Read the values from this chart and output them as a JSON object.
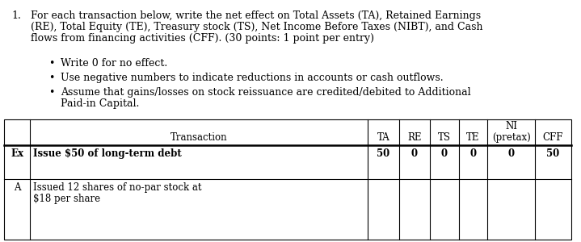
{
  "title_number": "1.",
  "title_line1": "For each transaction below, write the net effect on Total Assets (TA), Retained Earnings",
  "title_line2": "(RE), Total Equity (TE), Treasury stock (TS), Net Income Before Taxes (NIBT), and Cash",
  "title_line3": "flows from financing activities (CFF). (30 points: 1 point per entry)",
  "bullet1": "Write 0 for no effect.",
  "bullet2": "Use negative numbers to indicate reductions in accounts or cash outflows.",
  "bullet3a": "Assume that gains/losses on stock reissuance are credited/debited to Additional",
  "bullet3b": "Paid-in Capital.",
  "col_labels": [
    "",
    "Transaction",
    "TA",
    "RE",
    "TS",
    "TE",
    "NI\n(pretax)",
    "CFF"
  ],
  "header_ni_line1": "NI",
  "header_ni_line2": "(pretax)",
  "ex_label": "Ex",
  "ex_transaction": "Issue $50 of long-term debt",
  "ex_values": [
    "50",
    "0",
    "0",
    "0",
    "0",
    "50"
  ],
  "a_label": "A",
  "a_transaction_line1": "Issued 12 shares of no-par stock at",
  "a_transaction_line2": "$18 per share",
  "background_color": "#ffffff",
  "font_size": 8.5,
  "font_size_title": 9.0
}
